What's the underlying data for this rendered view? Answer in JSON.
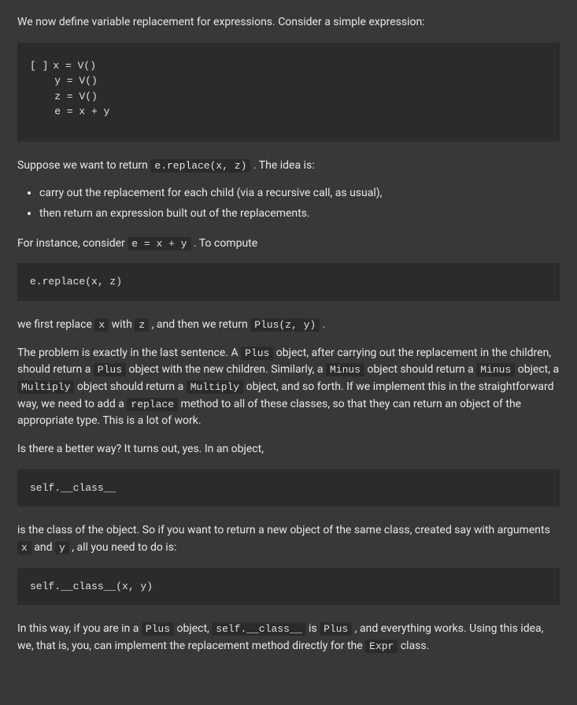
{
  "colors": {
    "page_bg": "#383838",
    "code_bg": "#2b2b2b",
    "text": "#e8e8e8",
    "code_text": "#e0e0e0"
  },
  "p_intro": "We now define variable replacement for expressions. Consider a simple expression:",
  "code1": {
    "prompt": "[ ]",
    "body": "x = V()\n    y = V()\n    z = V()\n    e = x + y"
  },
  "p_suppose_a": "Suppose we want to return ",
  "inline_replace": "e.replace(x, z)",
  "p_suppose_b": " . The idea is:",
  "bullet1": "carry out the replacement for each child (via a recursive call, as usual),",
  "bullet2": "then return an expression built out of the replacements.",
  "p_for_a": "For instance, consider ",
  "inline_eq": "e = x + y",
  "p_for_b": " . To compute",
  "code2": "e.replace(x, z)",
  "p_first_a": "we first replace ",
  "inline_x": "x",
  "p_first_b": " with ",
  "inline_z": "z",
  "p_first_c": " , and then we return ",
  "inline_plus_zy": "Plus(z, y)",
  "p_first_d": " .",
  "p_problem_a": "The problem is exactly in the last sentence. A ",
  "inline_Plus1": "Plus",
  "p_problem_b": " object, after carrying out the replacement in the children, should return a ",
  "inline_Plus2": "Plus",
  "p_problem_c": " object with the new children. Similarly, a ",
  "inline_Minus1": "Minus",
  "p_problem_d": " object should return a ",
  "inline_Minus2": "Minus",
  "p_problem_e": " object, a ",
  "inline_Mult1": "Multiply",
  "p_problem_f": " object should return a ",
  "inline_Mult2": "Multiply",
  "p_problem_g": " object, and so forth. If we implement this in the straightforward way, we need to add a ",
  "inline_replace2": "replace",
  "p_problem_h": " method to all of these classes, so that they can return an object of the appropriate type. This is a lot of work.",
  "p_better": "Is there a better way? It turns out, yes. In an object,",
  "code3": "self.__class__",
  "p_class_a": "is the class of the object. So if you want to return a new object of the same class, created say with arguments ",
  "inline_x2": "x",
  "p_class_b": " and ",
  "inline_y": "y",
  "p_class_c": " , all you need to do is:",
  "code4": "self.__class__(x, y)",
  "p_inthis_a": "In this way, if you are in a ",
  "inline_Plus3": "Plus",
  "p_inthis_b": " object, ",
  "inline_selfclass": "self.__class__",
  "p_inthis_c": " is ",
  "inline_Plus4": "Plus",
  "p_inthis_d": " , and everything works. Using this idea, we, that is, you, can implement the replacement method directly for the ",
  "inline_Expr": "Expr",
  "p_inthis_e": " class."
}
